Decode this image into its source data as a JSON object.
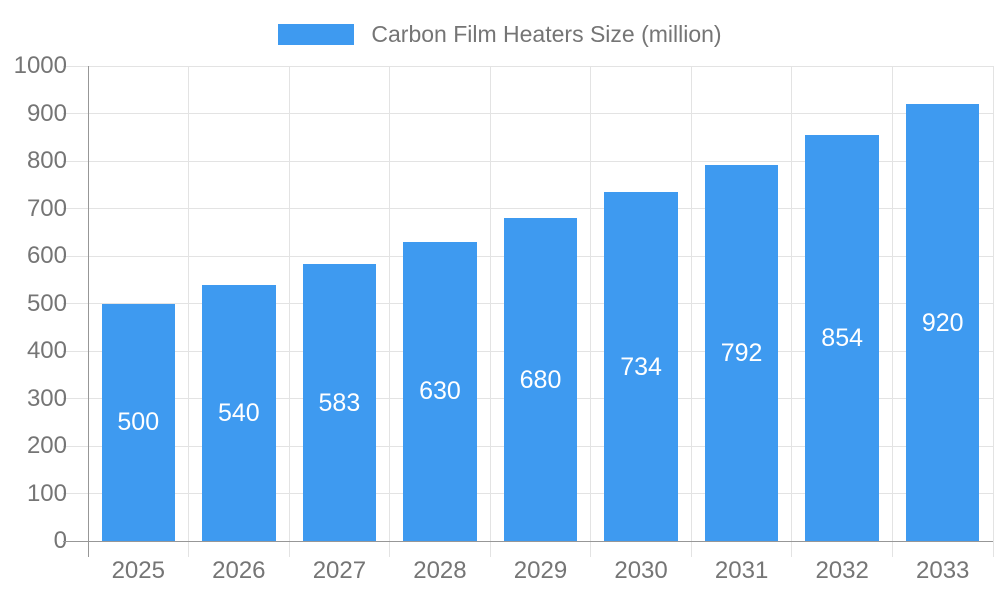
{
  "legend": {
    "label": "Carbon Film Heaters Size (million)"
  },
  "chart_data": {
    "type": "bar",
    "categories": [
      "2025",
      "2026",
      "2027",
      "2028",
      "2029",
      "2030",
      "2031",
      "2032",
      "2033"
    ],
    "values": [
      500,
      540,
      583,
      630,
      680,
      734,
      792,
      854,
      920
    ],
    "value_labels": [
      "500",
      "540",
      "583",
      "630",
      "680",
      "734",
      "792",
      "854",
      "920"
    ],
    "title": "Carbon Film Heaters Size (million)",
    "xlabel": "",
    "ylabel": "",
    "ylim": [
      0,
      1000
    ],
    "ytick_interval": 100,
    "ytick_labels": [
      "0",
      "100",
      "200",
      "300",
      "400",
      "500",
      "600",
      "700",
      "800",
      "900",
      "1000"
    ],
    "grid": true,
    "legend_position": "top-center",
    "value_label_position": "inside-center",
    "colors": {
      "bar": "#3E9AF0",
      "gridline": "#E3E3E3",
      "axis_line": "#979797",
      "axis_text": "#757575",
      "value_text": "#FFFFFF",
      "background": "#FFFFFF"
    }
  }
}
